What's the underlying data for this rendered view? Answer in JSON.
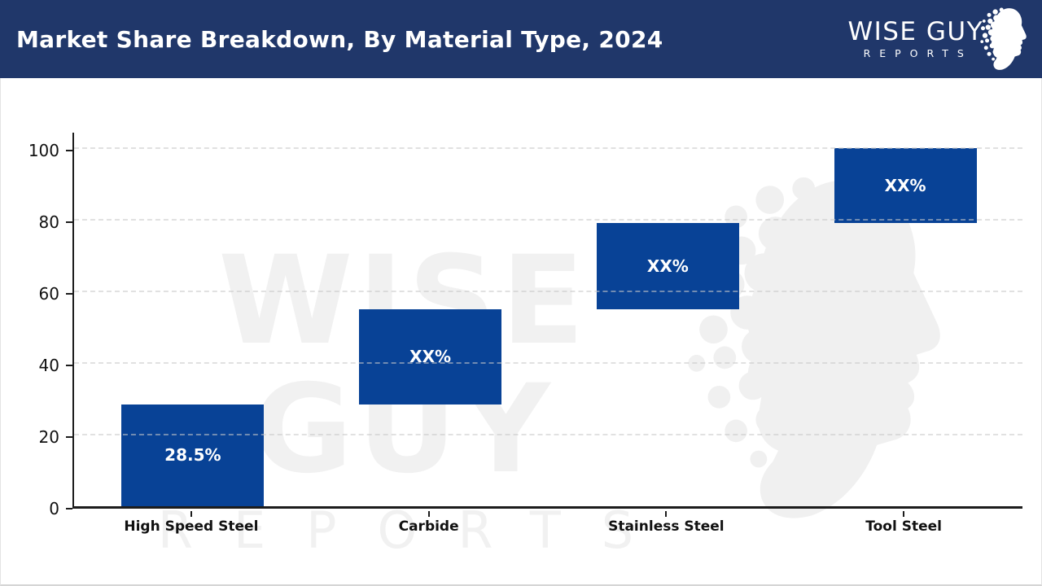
{
  "header": {
    "title": "Market Share Breakdown, By Material Type, 2024",
    "bg_color": "#20376a",
    "logo": {
      "line1": "WISE GUY",
      "line2": "REPORTS"
    }
  },
  "watermark": {
    "line1": "WISE GUY",
    "line2": "REPORTS"
  },
  "chart_data": {
    "type": "bar",
    "subtype": "waterfall",
    "title": "Market Share Breakdown, By Material Type, 2024",
    "xlabel": "",
    "ylabel": "",
    "categories": [
      "High Speed Steel",
      "Carbide",
      "Stainless Steel",
      "Tool Steel"
    ],
    "segments": [
      {
        "category": "High Speed Steel",
        "start": 0,
        "end": 28.5,
        "label": "28.5%"
      },
      {
        "category": "Carbide",
        "start": 28.5,
        "end": 55,
        "label": "XX%"
      },
      {
        "category": "Stainless Steel",
        "start": 55,
        "end": 79,
        "label": "XX%"
      },
      {
        "category": "Tool Steel",
        "start": 79,
        "end": 100,
        "label": "XX%"
      }
    ],
    "yticks": [
      0,
      20,
      40,
      60,
      80,
      100
    ],
    "ylim": [
      0,
      105
    ],
    "grid": "dashed-horizontal",
    "legend": "none",
    "bar_color": "#084296",
    "bar_label_color": "#ffffff",
    "axis_color": "#1c1c1c",
    "grid_color": "#c9c9c9"
  }
}
